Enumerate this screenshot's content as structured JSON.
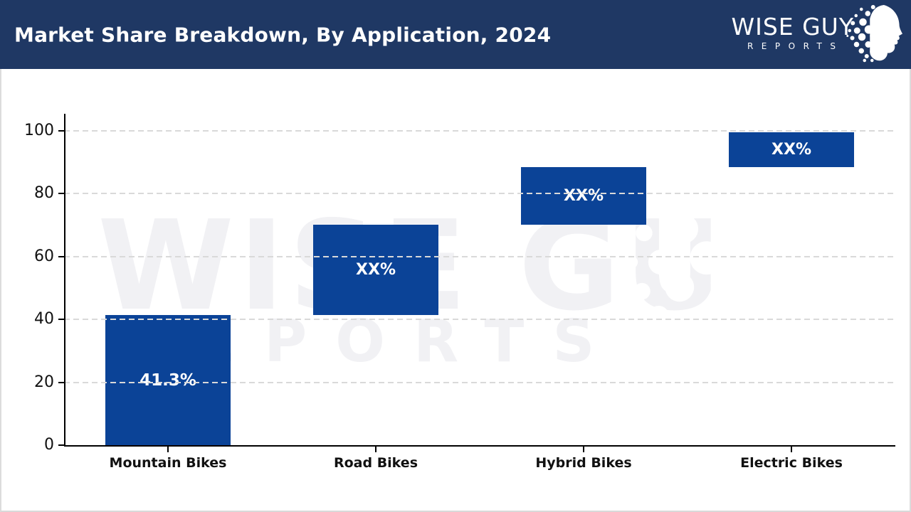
{
  "header": {
    "title": "Market Share Breakdown, By Application, 2024",
    "logo": {
      "line1": "WISE GUY",
      "line2": "REPORTS"
    }
  },
  "watermark": {
    "line1": "WISE GU",
    "line2": "REPORTS"
  },
  "colors": {
    "header_bg": "#1f3864",
    "bar": "#0b4397",
    "grid": "#d9d9d9",
    "axis": "#000000",
    "title_text": "#ffffff",
    "bar_label_text": "#ffffff",
    "watermark": "#f1f1f4"
  },
  "chart_data": {
    "type": "bar",
    "subtype": "floating-waterfall",
    "title": "Market Share Breakdown, By Application, 2024",
    "categories": [
      "Mountain Bikes",
      "Road Bikes",
      "Hybrid Bikes",
      "Electric Bikes"
    ],
    "segments": [
      {
        "category": "Mountain Bikes",
        "start": 0,
        "end": 41.3,
        "label": "41.3%"
      },
      {
        "category": "Road Bikes",
        "start": 41.3,
        "end": 70.1,
        "label": "XX%"
      },
      {
        "category": "Hybrid Bikes",
        "start": 70.1,
        "end": 88.5,
        "label": "XX%"
      },
      {
        "category": "Electric Bikes",
        "start": 88.5,
        "end": 99.5,
        "label": "XX%"
      }
    ],
    "ylim": [
      0,
      100
    ],
    "yticks": [
      0,
      20,
      40,
      60,
      80,
      100
    ],
    "xlabel": "",
    "ylabel": "",
    "grid": true,
    "grid_style": "dashed",
    "grid_above_bars": true,
    "legend": false,
    "bar_color": "#0b4397"
  }
}
